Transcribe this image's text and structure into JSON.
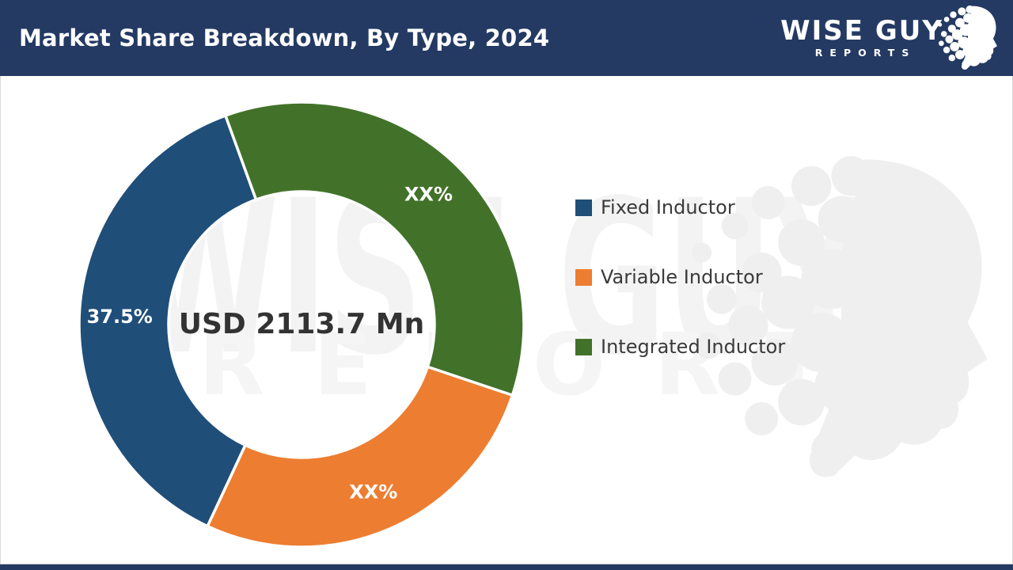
{
  "header": {
    "title": "Market Share Breakdown, By Type, 2024",
    "brand": {
      "line1": "WISE GUY",
      "line2": "REPORTS"
    }
  },
  "watermark": {
    "line1": "WISE GUY",
    "line2": "REPORTS"
  },
  "chart_data": {
    "type": "pie",
    "subtype": "donut",
    "title": "Market Share Breakdown, By Type, 2024",
    "center_label": "USD 2113.7 Mn",
    "start_angle_deg": 205,
    "clockwise": true,
    "inner_radius_ratio": 0.6,
    "draw_order": [
      0,
      2,
      1
    ],
    "segments": [
      {
        "label": "Fixed Inductor",
        "value": 37.5,
        "display": "37.5%",
        "color": "#1f4e79"
      },
      {
        "label": "Variable Inductor",
        "value": 26.8,
        "display": "XX%",
        "color": "#ed7d31"
      },
      {
        "label": "Integrated Inductor",
        "value": 35.7,
        "display": "XX%",
        "color": "#427229"
      }
    ],
    "legend_position": "right"
  },
  "colors": {
    "header_bg": "#243a63",
    "footer_bg": "#243a63",
    "text_dark": "#333333",
    "legend_text": "#3a3a3a",
    "watermark": "#f3f3f3",
    "slice_gap": "#ffffff"
  }
}
